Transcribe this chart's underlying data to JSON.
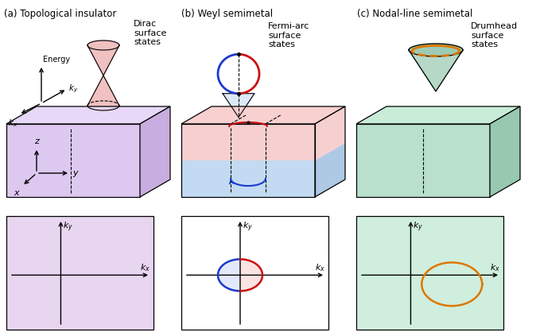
{
  "panel_titles": [
    "(a) Topological insulator",
    "(b) Weyl semimetal",
    "(c) Nodal-line semimetal"
  ],
  "weyl_blue": "#1a3acc",
  "weyl_red": "#cc1111",
  "nodal_orange": "#dd7700",
  "cone_pink": "#e8a0a0",
  "cone_green_fill": "#7ab89a",
  "cone_green_dark": "#2a6644",
  "box_purple_front": "#ddc8f0",
  "box_purple_top": "#e8d8f8",
  "box_purple_right": "#c8aee0",
  "box_pink_front": "#f5c8c8",
  "box_pink_top": "#f8d0d0",
  "box_blue_front": "#b8d4f0",
  "box_blue_right": "#a0c0e0",
  "box_green_front": "#b8e0cc",
  "box_green_top": "#c8ecd8",
  "box_green_right": "#98c8b0",
  "bz_purple": "#e8d5f0",
  "bz_green": "#d0eedd"
}
